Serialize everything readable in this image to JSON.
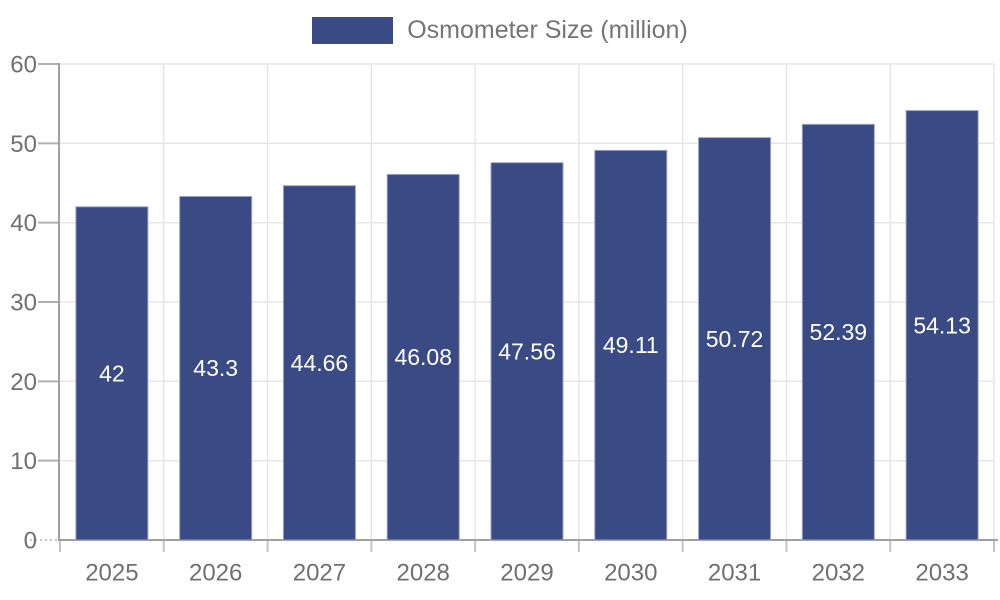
{
  "legend": {
    "label": "Osmometer Size (million)"
  },
  "chart_data": {
    "type": "bar",
    "title": "Osmometer Size (million)",
    "categories": [
      "2025",
      "2026",
      "2027",
      "2028",
      "2029",
      "2030",
      "2031",
      "2032",
      "2033"
    ],
    "values": [
      42,
      43.3,
      44.66,
      46.08,
      47.56,
      49.11,
      50.72,
      52.39,
      54.13
    ],
    "value_labels": [
      "42",
      "43.3",
      "44.66",
      "46.08",
      "47.56",
      "49.11",
      "50.72",
      "52.39",
      "54.13"
    ],
    "xlabel": "",
    "ylabel": "",
    "ylim": [
      0,
      60
    ],
    "yticks": [
      0,
      10,
      20,
      30,
      40,
      50,
      60
    ],
    "ytick_labels": [
      "0",
      "10",
      "20",
      "30",
      "40",
      "50",
      "60"
    ],
    "grid": true,
    "legend_position": "top",
    "colors": {
      "bar": "#3a4a85",
      "bar_border": "#9aa3c7",
      "value_label": "#ffffff",
      "axis": "#a0a0a0",
      "tick": "#b0b0b0",
      "zero_tick": "#c6c6c6",
      "x_tick": "#c4c4c4",
      "grid": "#e5e5e5",
      "axis_label": "#707070",
      "legend_text": "#757575"
    }
  }
}
